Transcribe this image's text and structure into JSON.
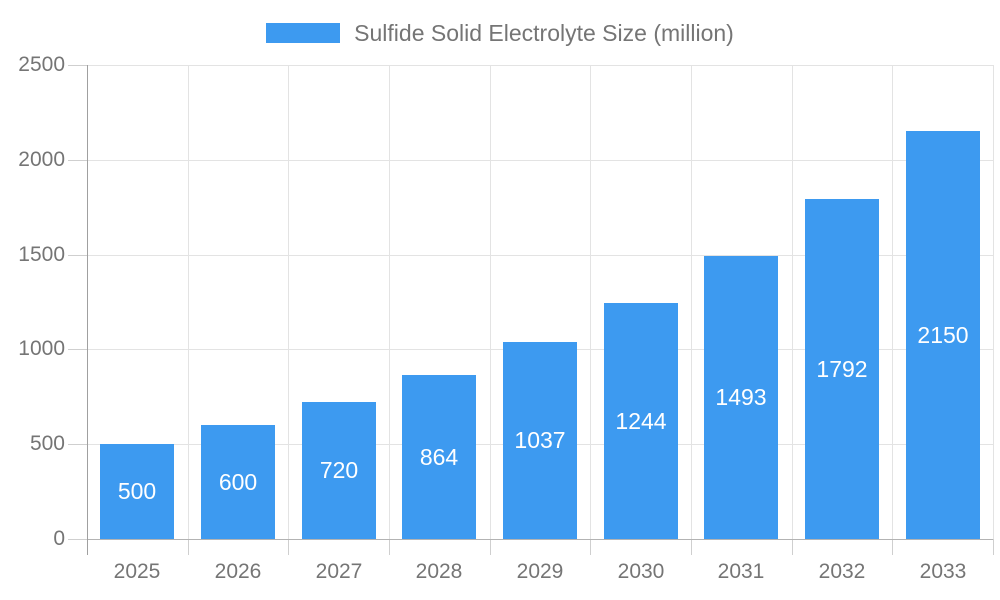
{
  "chart_data": {
    "type": "bar",
    "title": "Sulfide Solid Electrolyte Size (million)",
    "series": [
      {
        "name": "Sulfide Solid Electrolyte Size (million)",
        "values": [
          500,
          600,
          720,
          864,
          1037,
          1244,
          1493,
          1792,
          2150
        ]
      }
    ],
    "categories": [
      "2025",
      "2026",
      "2027",
      "2028",
      "2029",
      "2030",
      "2031",
      "2032",
      "2033"
    ],
    "xlabel": "",
    "ylabel": "",
    "ylim": [
      0,
      2500
    ],
    "y_ticks": [
      0,
      500,
      1000,
      1500,
      2000,
      2500
    ],
    "grid": true,
    "legend_position": "top-center",
    "value_labels": "white text centered inside bars",
    "colors": {
      "bar": "#3d9af0",
      "value_label": "#ffffff",
      "axis_text": "#757575",
      "gridline": "#e3e3e3",
      "axis_line_y": "#a0a0a0",
      "axis_line_x": "#b3b3b3",
      "tick": "#cfcfcf",
      "background": "#ffffff"
    }
  }
}
